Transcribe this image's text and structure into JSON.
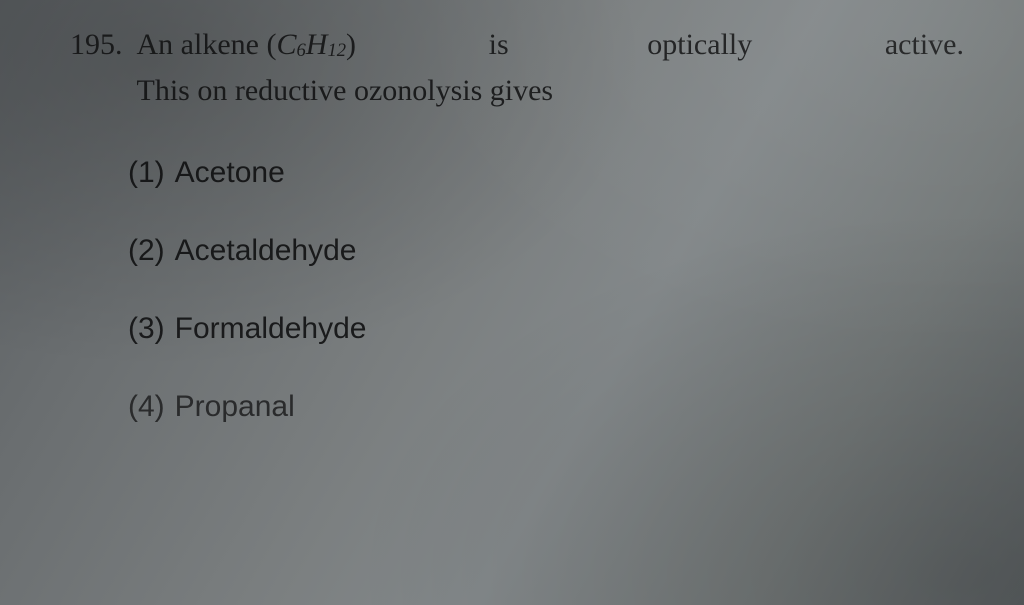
{
  "question": {
    "number": "195.",
    "line1_prefix": "An alkene",
    "formula_open": "(",
    "formula_C": "C",
    "formula_sub1": "6",
    "formula_H": "H",
    "formula_sub2": "12",
    "formula_close": ")",
    "line1_mid": "is",
    "line1_mid2": "optically",
    "line1_end": "active.",
    "line2": "This on reductive ozonolysis gives"
  },
  "options": [
    {
      "num": "(1)",
      "text": "Acetone"
    },
    {
      "num": "(2)",
      "text": "Acetaldehyde"
    },
    {
      "num": "(3)",
      "text": "Formaldehyde"
    },
    {
      "num": "(4)",
      "text": "Propanal"
    }
  ],
  "colors": {
    "text": "#1b1c1d",
    "bg_start": "#5a5e61",
    "bg_end": "#5c6163"
  }
}
